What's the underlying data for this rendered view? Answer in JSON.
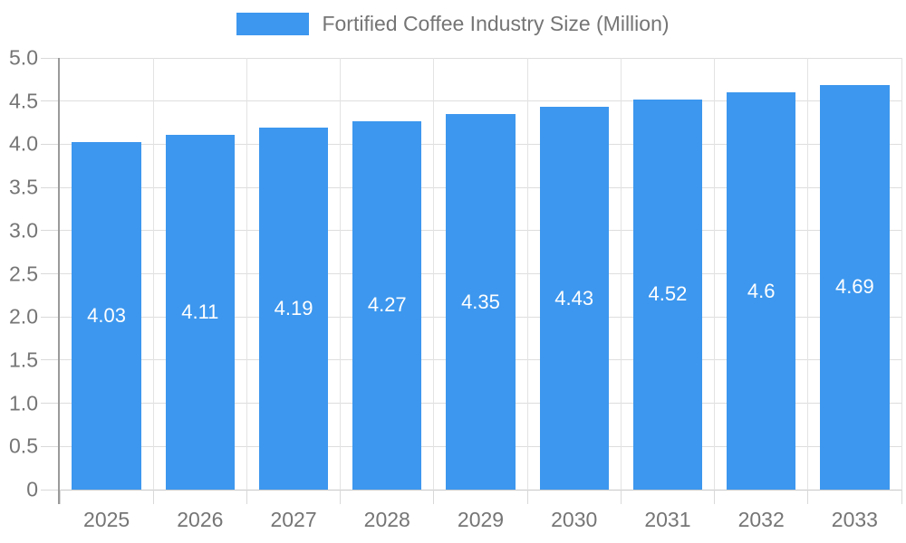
{
  "chart_data": {
    "type": "bar",
    "title": "Fortified Coffee Industry Size (Million)",
    "categories": [
      "2025",
      "2026",
      "2027",
      "2028",
      "2029",
      "2030",
      "2031",
      "2032",
      "2033"
    ],
    "values": [
      4.03,
      4.11,
      4.19,
      4.27,
      4.35,
      4.43,
      4.52,
      4.6,
      4.69
    ],
    "bar_labels": [
      "4.03",
      "4.11",
      "4.19",
      "4.27",
      "4.35",
      "4.43",
      "4.52",
      "4.6",
      "4.69"
    ],
    "xlabel": "",
    "ylabel": "",
    "ylim": [
      0,
      5
    ],
    "yticks": [
      "0",
      "0.5",
      "1.0",
      "1.5",
      "2.0",
      "2.5",
      "3.0",
      "3.5",
      "4.0",
      "4.5",
      "5.0"
    ],
    "grid": true,
    "legend_position": "top",
    "colors": {
      "bar": "#3d97ee",
      "bar_value_text": "#ffffff",
      "axis_text": "#757575",
      "gridline": "#dedede",
      "y_axis_line": "#9a9a9a"
    }
  }
}
